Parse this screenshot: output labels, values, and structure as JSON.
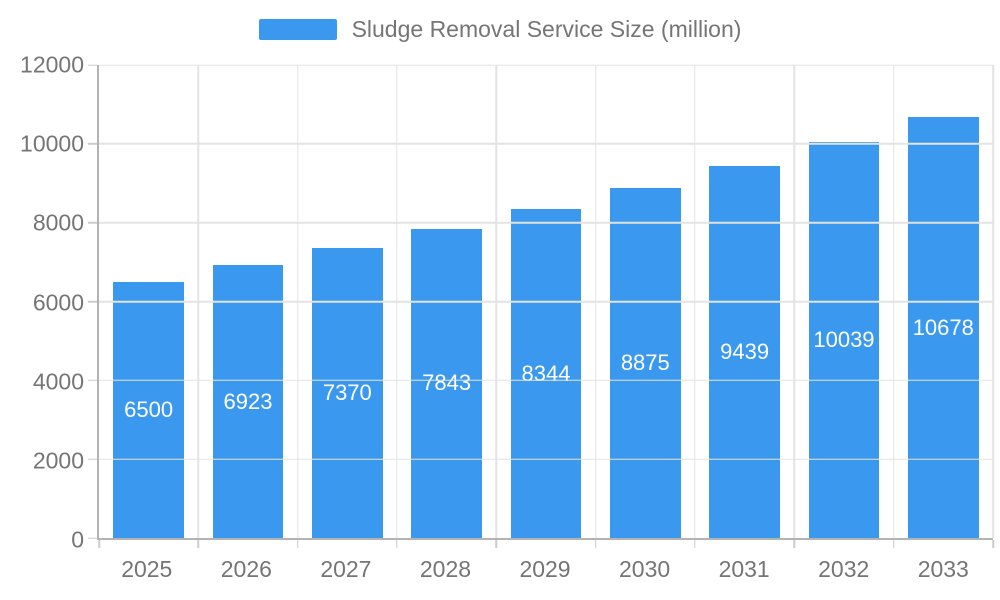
{
  "legend": {
    "label": "Sludge Removal Service Size (million)"
  },
  "chart_data": {
    "type": "bar",
    "title": "Sludge Removal Service Size (million)",
    "categories": [
      "2025",
      "2026",
      "2027",
      "2028",
      "2029",
      "2030",
      "2031",
      "2032",
      "2033"
    ],
    "values": [
      6500,
      6923,
      7370,
      7843,
      8344,
      8875,
      9439,
      10039,
      10678
    ],
    "xlabel": "",
    "ylabel": "",
    "ylim": [
      0,
      12000
    ],
    "ytick_step": 2000,
    "yticks": [
      0,
      2000,
      4000,
      6000,
      8000,
      10000,
      12000
    ],
    "grid": true,
    "legend_position": "top",
    "bar_color": "#3a99ee",
    "value_label_color": "#ffffff"
  },
  "colors": {
    "bar": "#3a99ee",
    "axis_line": "#b3b3b3",
    "grid_line": "#e3e3e3",
    "tick_mark": "#cccccc",
    "axis_text": "#757575",
    "bar_label_text": "#ffffff",
    "background": "#ffffff"
  }
}
